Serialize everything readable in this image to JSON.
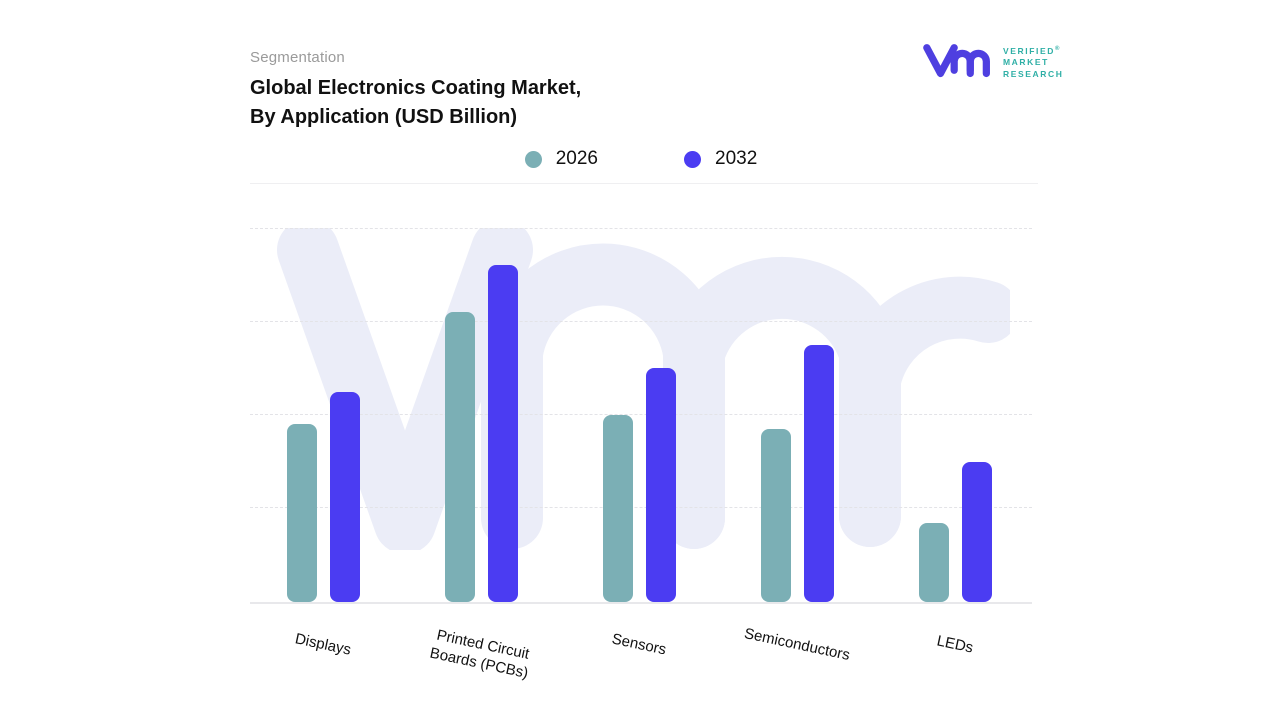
{
  "header": {
    "eyebrow": "Segmentation",
    "title": "Global Electronics Coating Market,\nBy Application (USD Billion)"
  },
  "logo": {
    "name": "Verified Market Research",
    "line1": "VERIFIED",
    "registered": "®",
    "line2": "MARKET",
    "line3": "RESEARCH",
    "glyph_color": "#4e3fe0",
    "text_color": "#2fafa6"
  },
  "legend": [
    {
      "label": "2026",
      "color": "#7bafb5"
    },
    {
      "label": "2032",
      "color": "#4b3cf2"
    }
  ],
  "colors": {
    "series_2026": "#7bafb5",
    "series_2032": "#4b3cf2",
    "watermark": "#ebedf8",
    "gridline": "#e3e3e7",
    "eyebrow_gray": "#9a9a9a"
  },
  "chart_data": {
    "type": "bar",
    "title": "Global Electronics Coating Market, By Application (USD Billion)",
    "categories": [
      "Displays",
      "Printed Circuit\nBoards (PCBs)",
      "Sensors",
      "Semiconductors",
      "LEDs"
    ],
    "series": [
      {
        "name": "2026",
        "color": "#7bafb5",
        "values": [
          1.9,
          3.1,
          2.0,
          1.85,
          0.85
        ]
      },
      {
        "name": "2032",
        "color": "#4b3cf2",
        "values": [
          2.25,
          3.6,
          2.5,
          2.75,
          1.5
        ]
      }
    ],
    "xlabel": "",
    "ylabel": "",
    "ylim": [
      0,
      4
    ],
    "value_axis_labels_visible": false,
    "grid": "horizontal-dashed",
    "legend_position": "top-center",
    "category_label_rotation_deg": 12
  }
}
